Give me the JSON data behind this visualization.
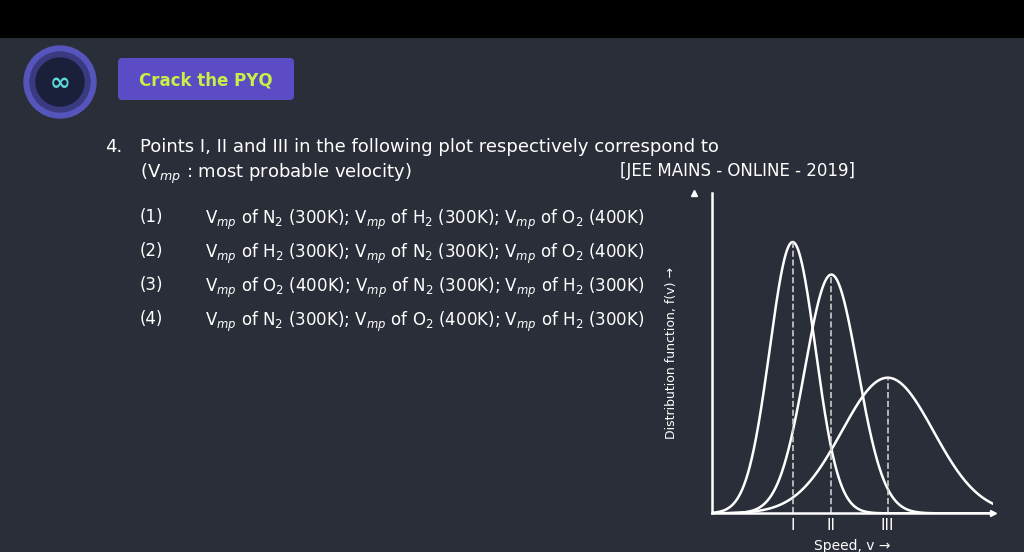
{
  "background_color": "#2a2e38",
  "top_bar_color": "#000000",
  "title_box_color": "#5b4bc4",
  "title_box_text": "Crack the PYQ",
  "title_box_text_color": "#c8f045",
  "question_number": "4.",
  "question_line1": "Points I, II and III in the following plot respectively correspond to",
  "question_line2": "(V$_{mp}$ : most probable velocity)",
  "reference": "[JEE MAINS - ONLINE - 2019]",
  "options_num": [
    "(1)",
    "(2)",
    "(3)",
    "(4)"
  ],
  "options_text": [
    "V$_{mp}$ of N$_2$ (300K); V$_{mp}$ of H$_2$ (300K); V$_{mp}$ of O$_2$ (400K)",
    "V$_{mp}$ of H$_2$ (300K); V$_{mp}$ of N$_2$ (300K); V$_{mp}$ of O$_2$ (400K)",
    "V$_{mp}$ of O$_2$ (400K); V$_{mp}$ of N$_2$ (300K); V$_{mp}$ of H$_2$ (300K)",
    "V$_{mp}$ of N$_2$ (300K); V$_{mp}$ of O$_2$ (400K); V$_{mp}$ of H$_2$ (300K)"
  ],
  "text_color": "#ffffff",
  "curve_color": "#ffffff",
  "axis_color": "#ffffff",
  "dashed_line_color": "#cccccc",
  "ylabel": "Distribution function, f(v) →",
  "xlabel": "Speed, v →",
  "point_labels": [
    "I",
    "II",
    "III"
  ],
  "curve1_mu": 2.8,
  "curve1_sigma": 0.65,
  "curve1_amp": 1.0,
  "curve2_mu": 3.9,
  "curve2_sigma": 0.75,
  "curve2_amp": 0.88,
  "curve3_mu": 5.5,
  "curve3_sigma": 1.3,
  "curve3_amp": 0.5,
  "logo_outer_color": "#4a4aaa",
  "logo_mid_color": "#2a2e70",
  "logo_inner_color": "#1a1f3a",
  "logo_symbol_color": "#5dd8d8"
}
